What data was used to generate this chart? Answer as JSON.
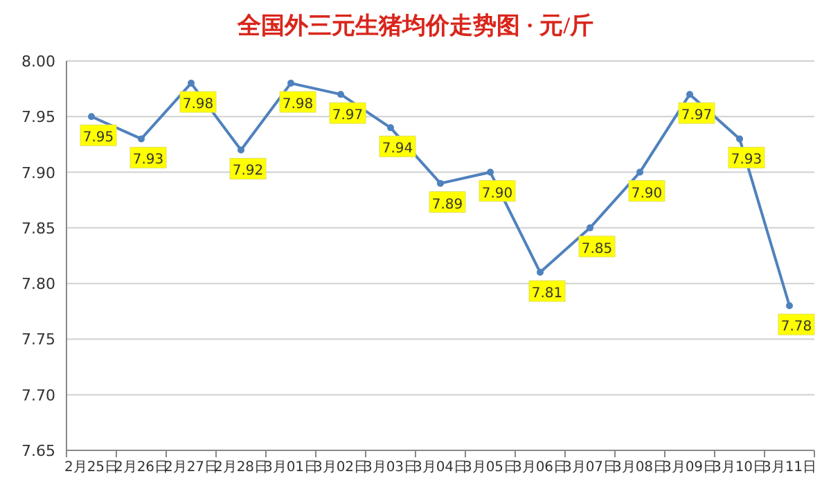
{
  "chart_data": {
    "type": "line",
    "title": "全国外三元生猪均价走势图 · 元/斤",
    "categories": [
      "2月25日",
      "2月26日",
      "2月27日",
      "2月28日",
      "3月01日",
      "3月02日",
      "3月03日",
      "3月04日",
      "3月05日",
      "3月06日",
      "3月07日",
      "3月08日",
      "3月09日",
      "3月10日",
      "3月11日"
    ],
    "series": [
      {
        "color": "#4f81bd",
        "values": [
          7.95,
          7.93,
          7.98,
          7.92,
          7.98,
          7.97,
          7.94,
          7.89,
          7.9,
          7.81,
          7.85,
          7.9,
          7.97,
          7.93,
          7.78
        ],
        "value_labels": [
          "7.95",
          "7.93",
          "7.98",
          "7.92",
          "7.98",
          "7.97",
          "7.94",
          "7.89",
          "7.90",
          "7.81",
          "7.85",
          "7.90",
          "7.97",
          "7.93",
          "7.78"
        ]
      }
    ],
    "ylim": [
      7.65,
      8.0
    ],
    "yticks": [
      7.65,
      {
        "value": 7.7,
        "label": "7.70"
      },
      7.75,
      {
        "value": 7.8,
        "label": "7.80"
      },
      7.85,
      {
        "value": 7.9,
        "label": "7.90"
      },
      7.95,
      {
        "value": 8.0,
        "label": "8.00"
      }
    ],
    "grid": "y",
    "marker": "circle",
    "line_style": "solid"
  }
}
